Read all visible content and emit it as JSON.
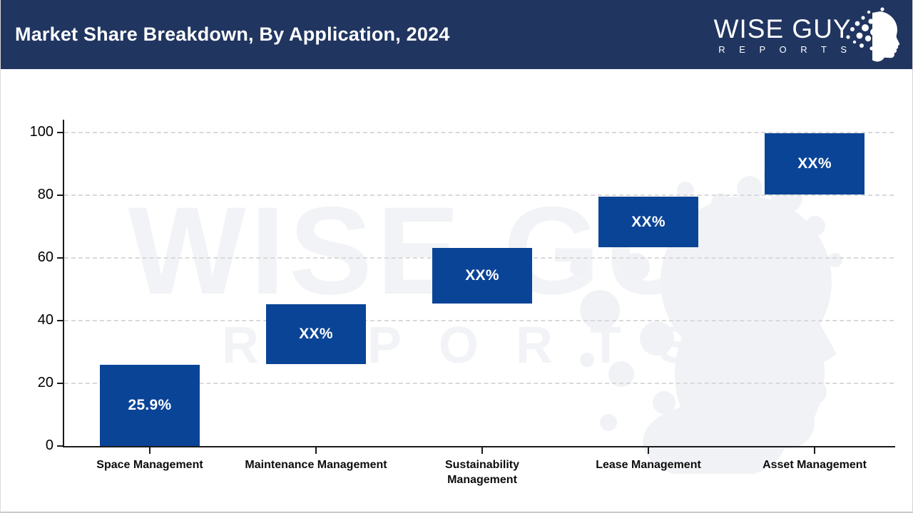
{
  "header": {
    "title": "Market Share Breakdown, By Application, 2024",
    "logo": {
      "line1": "WISE GUY",
      "line2": "R E P O R T S"
    }
  },
  "watermark": {
    "line1": "WISE GUY",
    "line2": "REPORTS"
  },
  "colors": {
    "header_bg": "#203560",
    "bar": "#0a4496",
    "bar_label": "#ffffff",
    "grid": "#d9d9d9",
    "axis": "#1a1a1a",
    "watermark": "#f2f3f6"
  },
  "chart_data": {
    "type": "bar",
    "subtype": "waterfall",
    "title": "Market Share Breakdown, By Application, 2024",
    "xlabel": "",
    "ylabel": "",
    "ylim": [
      0,
      100
    ],
    "yticks": [
      0,
      20,
      40,
      60,
      80,
      100
    ],
    "grid": "horizontal-dashed",
    "legend": false,
    "categories": [
      "Space Management",
      "Maintenance Management",
      "Sustainability Management",
      "Lease Management",
      "Asset Management"
    ],
    "bars": [
      {
        "category": "Space Management",
        "start": 0,
        "end": 25.9,
        "label": "25.9%"
      },
      {
        "category": "Maintenance Management",
        "start": 26.0,
        "end": 45.2,
        "label": "XX%"
      },
      {
        "category": "Sustainability Management",
        "start": 45.4,
        "end": 63.2,
        "label": "XX%"
      },
      {
        "category": "Lease Management",
        "start": 63.4,
        "end": 79.5,
        "label": "XX%"
      },
      {
        "category": "Asset Management",
        "start": 80.2,
        "end": 99.8,
        "label": "XX%"
      }
    ]
  }
}
